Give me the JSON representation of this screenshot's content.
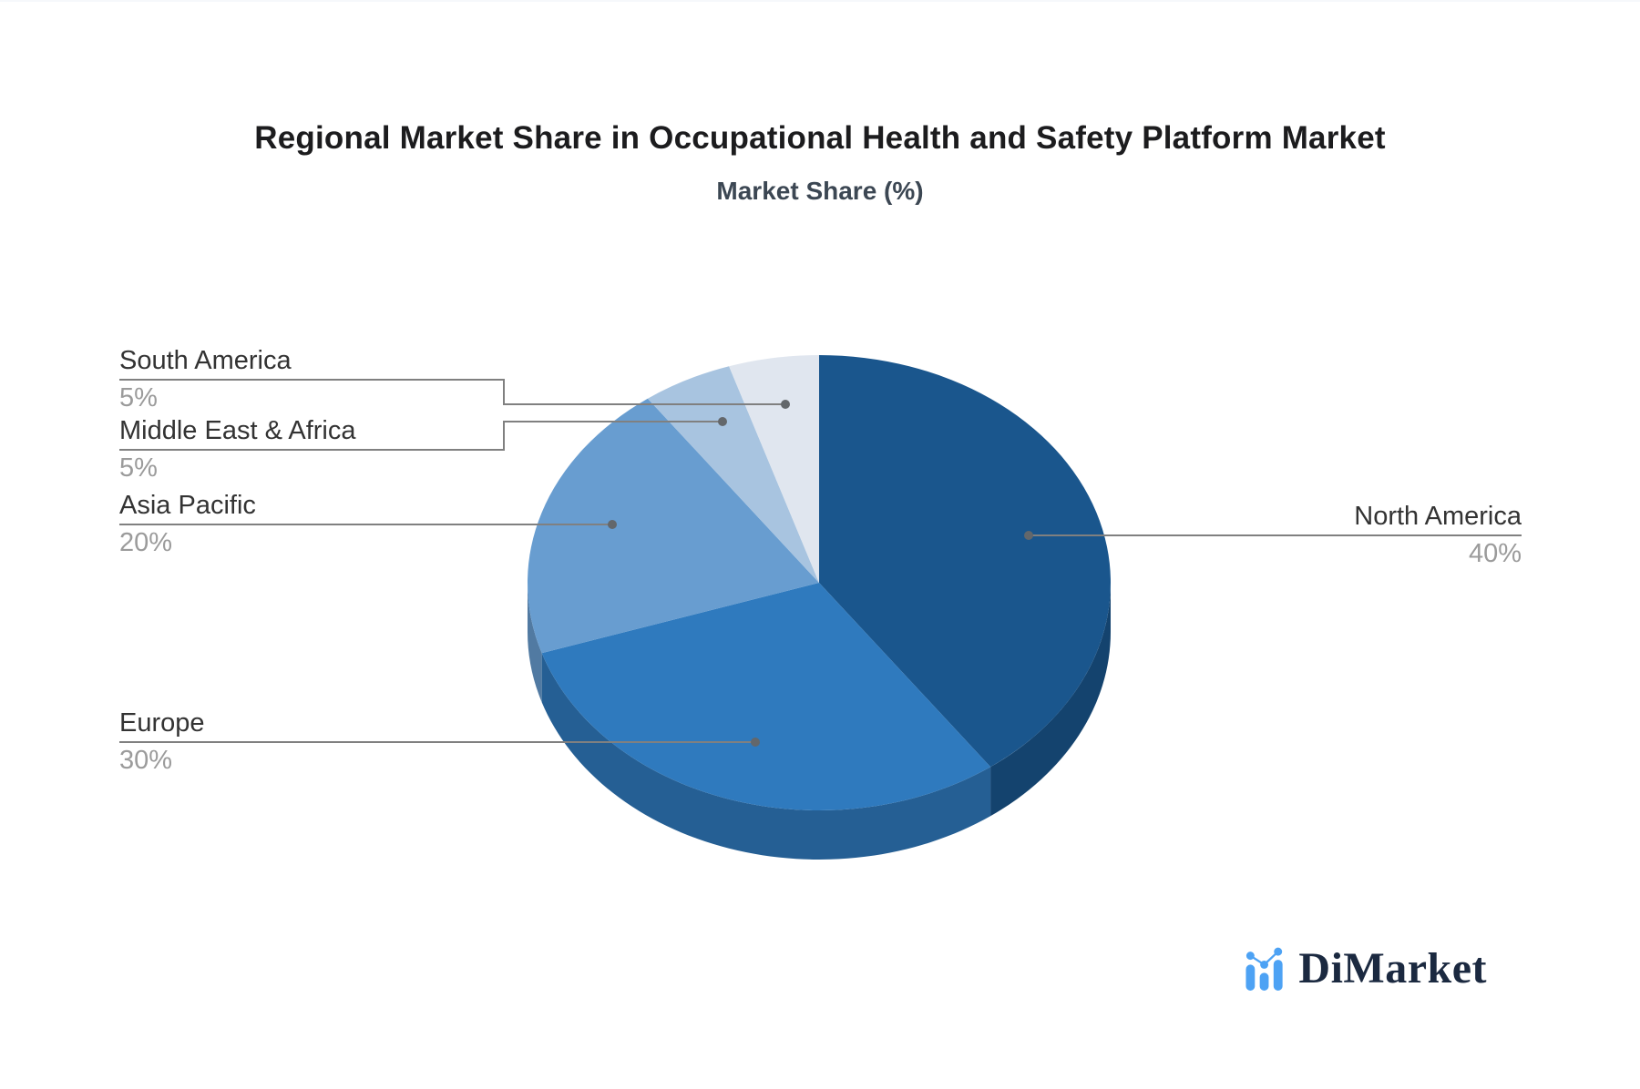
{
  "page": {
    "background": "#ffffff"
  },
  "chart_data": {
    "type": "pie",
    "effect": "3d",
    "title": "Regional Market Share in Occupational Health and Safety Platform Market",
    "subtitle": "Market Share (%)",
    "unit": "%",
    "start_angle_deg": 0,
    "direction": "clockwise",
    "slices": [
      {
        "label": "North America",
        "value": 40,
        "display": "40%",
        "color": "#1a568d"
      },
      {
        "label": "Europe",
        "value": 30,
        "display": "30%",
        "color": "#2f7abe"
      },
      {
        "label": "Asia Pacific",
        "value": 20,
        "display": "20%",
        "color": "#689dd0"
      },
      {
        "label": "Middle East & Africa",
        "value": 5,
        "display": "5%",
        "color": "#a8c4e0"
      },
      {
        "label": "South America",
        "value": 5,
        "display": "5%",
        "color": "#e0e6ef"
      }
    ],
    "label_text_color": "#333333",
    "value_text_color": "#9b9b9b",
    "leader_line_color": "#808080",
    "leader_dot_color": "#63676b",
    "legend_position": "none",
    "grid": false
  },
  "branding": {
    "logo_text": "DiMarket",
    "logo_icon": "bar-chart-trend-icon",
    "logo_text_color": "#1b2940",
    "logo_accent_color": "#4da2f4"
  }
}
